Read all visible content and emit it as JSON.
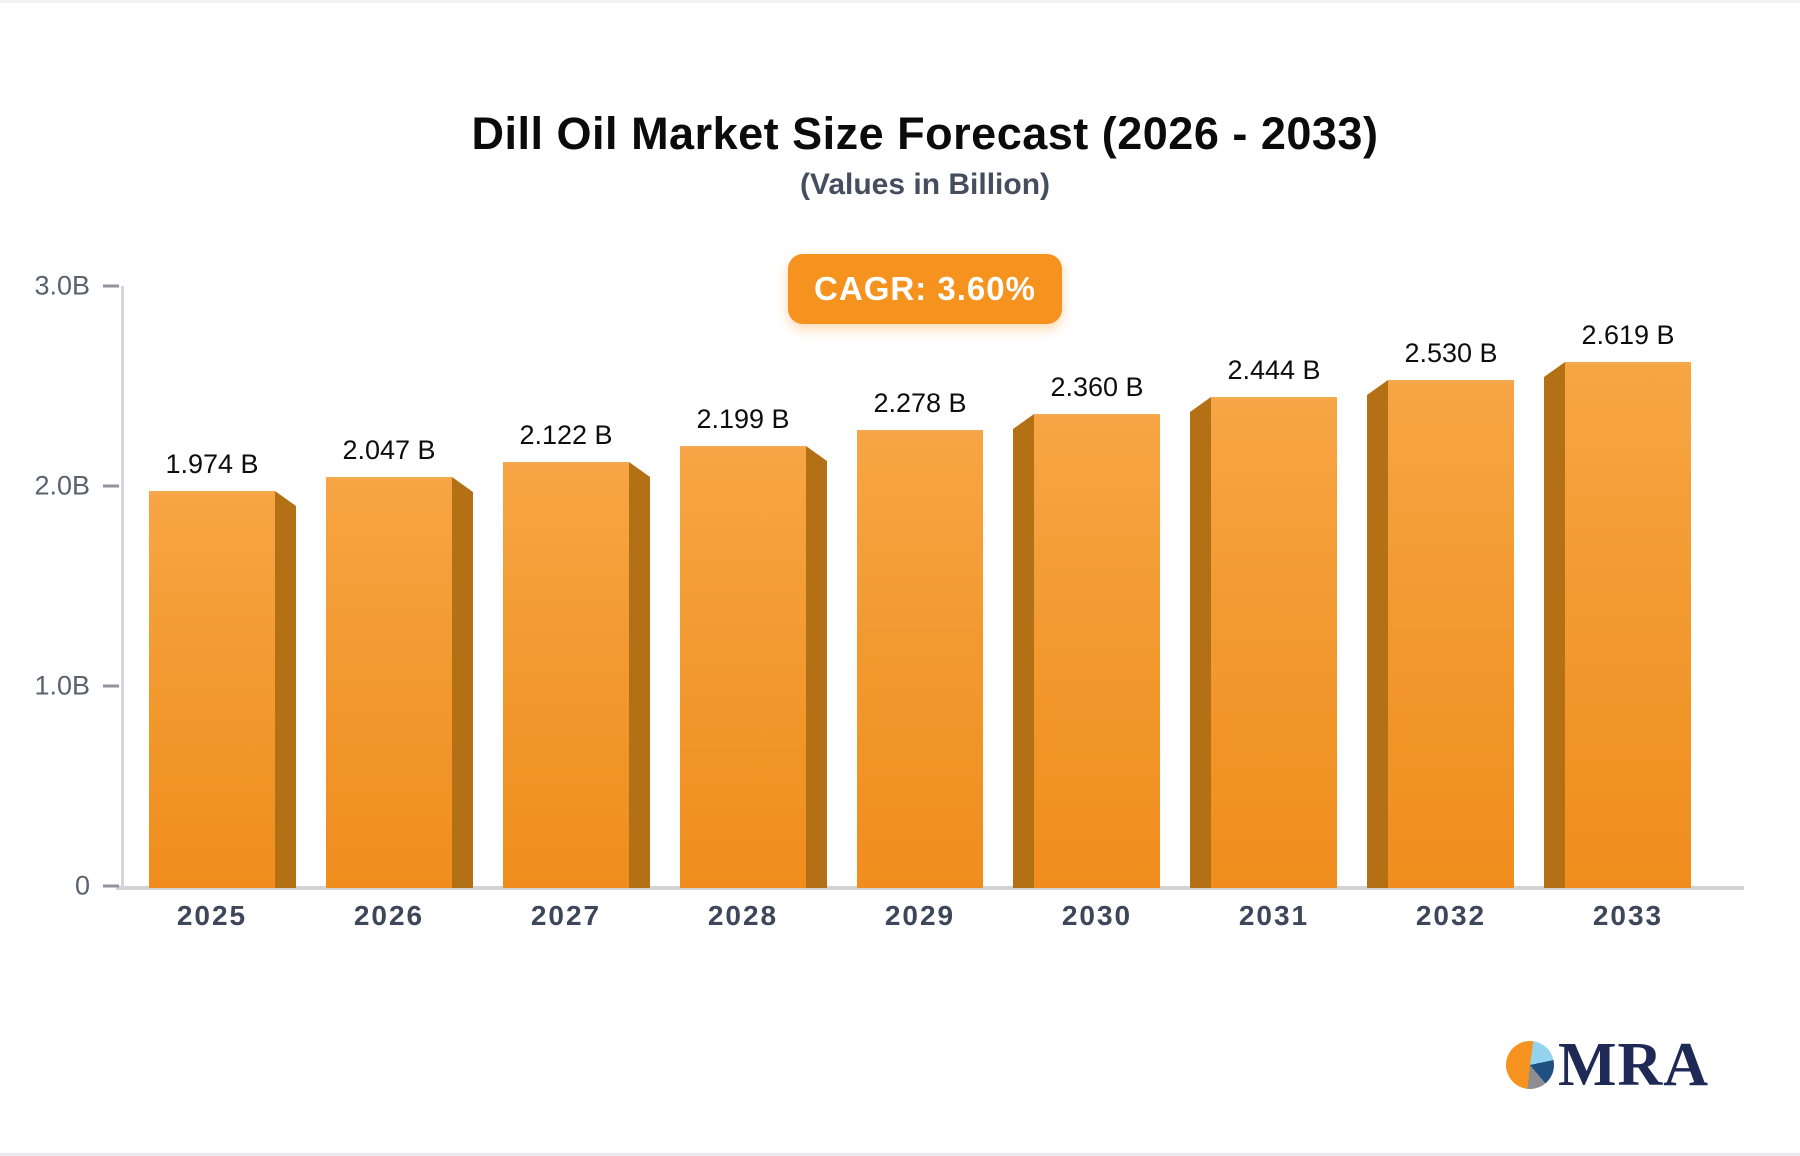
{
  "header": {
    "title": "Dill Oil Market Size Forecast (2026 - 2033)",
    "subtitle": "(Values in Billion)",
    "cagr_badge": "CAGR: 3.60%"
  },
  "chart_data": {
    "type": "bar",
    "title": "Dill Oil Market Size Forecast (2026 - 2033)",
    "subtitle": "(Values in Billion)",
    "categories": [
      "2025",
      "2026",
      "2027",
      "2028",
      "2029",
      "2030",
      "2031",
      "2032",
      "2033"
    ],
    "values": [
      1.974,
      2.047,
      2.122,
      2.199,
      2.278,
      2.36,
      2.444,
      2.53,
      2.619
    ],
    "value_labels": [
      "1.974 B",
      "2.047 B",
      "2.122 B",
      "2.199 B",
      "2.278 B",
      "2.360 B",
      "2.444 B",
      "2.530 B",
      "2.619 B"
    ],
    "unit": "Billion USD",
    "cagr_percent": 3.6,
    "xlabel": "",
    "ylabel": "",
    "ylim": [
      0,
      3.0
    ],
    "ytick_values": [
      0,
      1,
      2,
      3
    ],
    "ytick_labels": [
      "0",
      "1.0B",
      "2.0B",
      "3.0B"
    ],
    "grid": false,
    "legend": false,
    "bar_style": "3d-perspective",
    "bar_color_top": "#f7a544",
    "bar_color_bottom": "#f08d1d",
    "bar_side_color": "#b47015",
    "axis_color": "#d6d6da"
  },
  "badge_color": "#f6921e",
  "logo": {
    "text": "MRA",
    "text_color": "#1e2a55",
    "pie_wedges": [
      {
        "name": "orange",
        "color": "#f6921e",
        "from": 186,
        "to": 368
      },
      {
        "name": "light-blue",
        "color": "#94d3ee",
        "from": 8,
        "to": 78
      },
      {
        "name": "navy",
        "color": "#205081",
        "from": 78,
        "to": 140
      },
      {
        "name": "gray",
        "color": "#8e8d92",
        "from": 140,
        "to": 186
      }
    ]
  }
}
